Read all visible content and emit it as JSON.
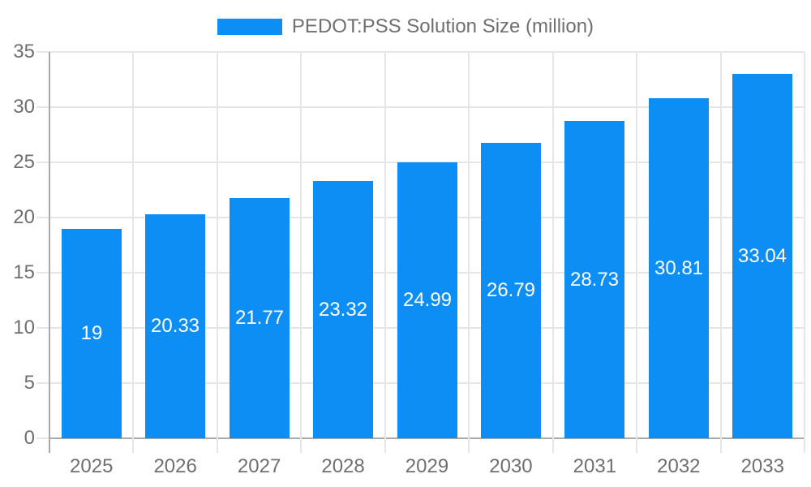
{
  "chart_data": {
    "type": "bar",
    "title": "PEDOT:PSS Solution Size (million)",
    "categories": [
      "2025",
      "2026",
      "2027",
      "2028",
      "2029",
      "2030",
      "2031",
      "2032",
      "2033"
    ],
    "values": [
      19,
      20.33,
      21.77,
      23.32,
      24.99,
      26.79,
      28.73,
      30.81,
      33.04
    ],
    "value_labels": [
      "19",
      "20.33",
      "21.77",
      "23.32",
      "24.99",
      "26.79",
      "28.73",
      "30.81",
      "33.04"
    ],
    "y_ticks": [
      0,
      5,
      10,
      15,
      20,
      25,
      30,
      35
    ],
    "ylim": [
      0,
      35
    ],
    "grid": true,
    "legend_position": "top-center",
    "bar_color": "#0d8ef4",
    "value_label_color": "#ffffff",
    "axis_text_color": "#6f6f6f",
    "grid_color": "#e6e6e6",
    "axis_line_color": "#aaaaaa",
    "background": "#ffffff"
  }
}
